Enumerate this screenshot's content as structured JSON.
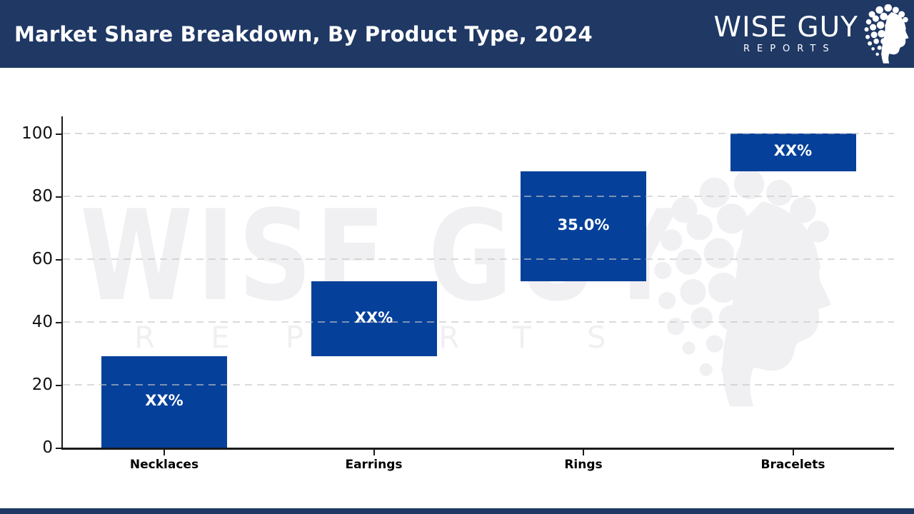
{
  "header": {
    "title": "Market Share Breakdown, By Product Type, 2024",
    "logo": {
      "line1": "WISE GUY",
      "line2": "REPORTS",
      "icon": "head-profile-dots-icon"
    }
  },
  "watermark": {
    "line1": "WISE GUY",
    "line2": "REPORTS",
    "icon": "head-profile-dots-icon"
  },
  "chart_data": {
    "type": "bar",
    "subtype": "floating-waterfall",
    "title": "Market Share Breakdown, By Product Type, 2024",
    "categories": [
      "Necklaces",
      "Earrings",
      "Rings",
      "Bracelets"
    ],
    "segments": [
      {
        "category": "Necklaces",
        "start": 0,
        "end": 29,
        "value": 29,
        "label": "XX%"
      },
      {
        "category": "Earrings",
        "start": 29,
        "end": 53,
        "value": 24,
        "label": "XX%"
      },
      {
        "category": "Rings",
        "start": 53,
        "end": 88,
        "value": 35,
        "label": "35.0%"
      },
      {
        "category": "Bracelets",
        "start": 88,
        "end": 100,
        "value": 12,
        "label": "XX%"
      }
    ],
    "xlabel": "",
    "ylabel": "",
    "ylim": [
      0,
      105
    ],
    "yticks": [
      0,
      20,
      40,
      60,
      80,
      100
    ],
    "grid": {
      "horizontal": true,
      "style": "dashed",
      "drawn_over_bars": true
    },
    "legend": null,
    "bar_color": "#05409A",
    "bar_label_color": "#FFFFFF"
  },
  "colors": {
    "header_bg": "#1F3864",
    "footer_bg": "#1F3864",
    "bar": "#05409A",
    "axis": "#1A1A1A",
    "gridline": "#D9D9D9",
    "watermark": "#F0F0F2",
    "title_text": "#FFFFFF"
  }
}
